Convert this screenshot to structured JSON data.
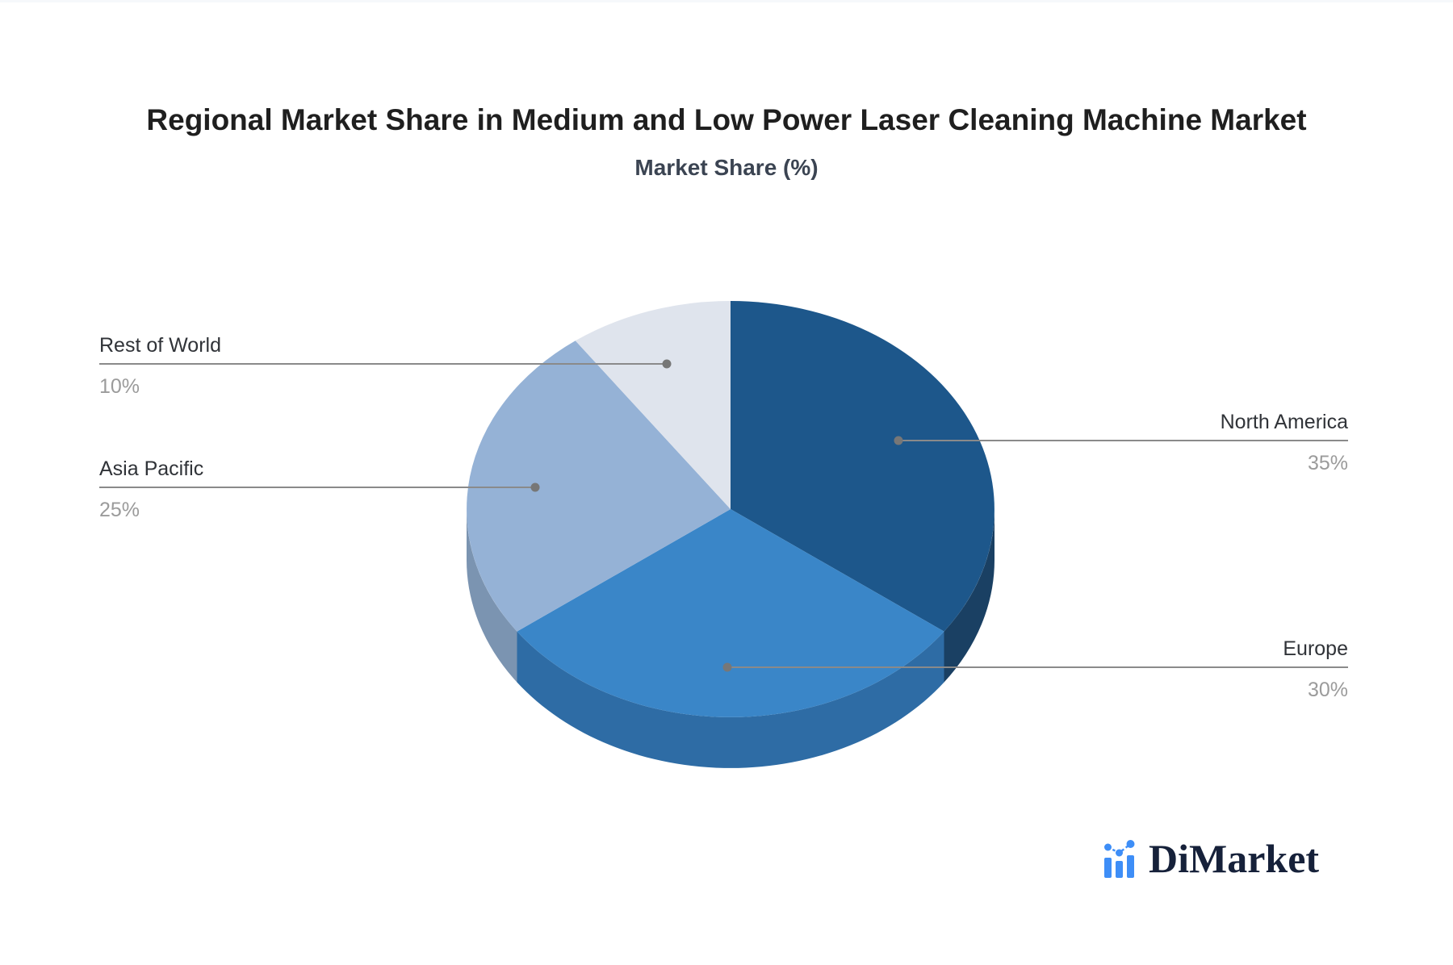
{
  "chart_data": {
    "type": "pie",
    "style": "3d",
    "title": "Regional Market Share in Medium and Low Power Laser Cleaning Machine Market",
    "subtitle": "Market Share (%)",
    "legend": "none",
    "labels_position": "outside-with-connector-lines",
    "start_angle_deg": 0,
    "direction": "clockwise",
    "slices": [
      {
        "id": "north-america",
        "label": "North America",
        "value": 35,
        "display": "35%",
        "color": "#1d578b",
        "side_color": "#1a4063"
      },
      {
        "id": "europe",
        "label": "Europe",
        "value": 30,
        "display": "30%",
        "color": "#3a86c8",
        "side_color": "#2e6ca5"
      },
      {
        "id": "asia-pacific",
        "label": "Asia Pacific",
        "value": 25,
        "display": "25%",
        "color": "#95b2d6",
        "side_color": "#7b94b1"
      },
      {
        "id": "rest-of-world",
        "label": "Rest of World",
        "value": 10,
        "display": "10%",
        "color": "#dfe4ed",
        "side_color": "#c3cedd"
      }
    ],
    "connector_color": "#8a8a8a",
    "dot_color": "#777777",
    "label_color": "#303338",
    "percent_color": "#9b9b9b"
  },
  "logo": {
    "text": "DiMarket",
    "icon": "bar-chart-logo-icon",
    "icon_color": "#3e8ef7",
    "text_color": "#16213a"
  }
}
